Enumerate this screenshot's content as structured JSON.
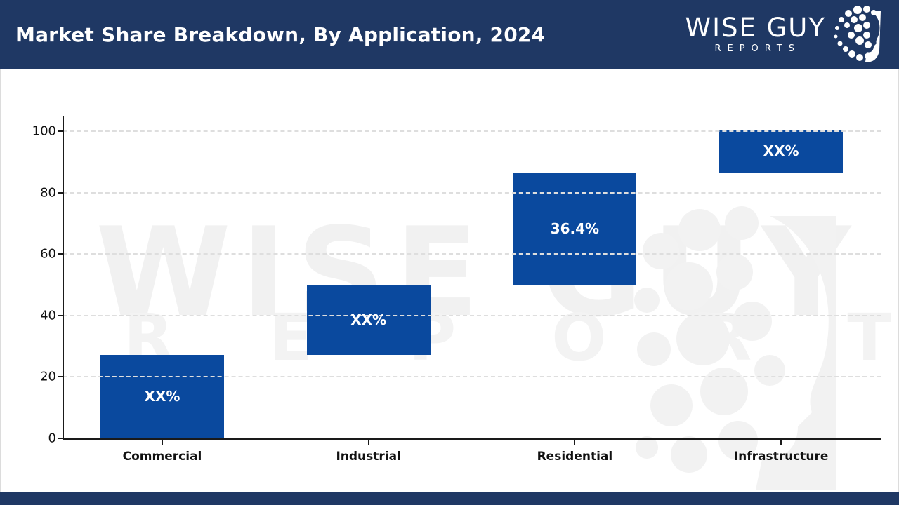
{
  "header": {
    "title": "Market Share Breakdown, By Application, 2024",
    "bg_color": "#1f3864",
    "logo": {
      "wordmark": "WISE GUY",
      "subtitle": "REPORTS"
    }
  },
  "colors": {
    "bar": "#0a499e",
    "header_bg": "#1f3864",
    "footer_bg": "#1f3864",
    "axis": "#1a1a1a",
    "gridline": "#dedede",
    "bar_label": "#ffffff",
    "watermark": "#f1f1f1"
  },
  "watermark": {
    "line1": "WISE GUY",
    "line2": "R E P O R T S"
  },
  "chart_data": {
    "type": "bar",
    "subtype": "floating-waterfall",
    "title": "Market Share Breakdown, By Application, 2024",
    "xlabel": "",
    "ylabel": "",
    "categories": [
      "Commercial",
      "Industrial",
      "Residential",
      "Infrastructure"
    ],
    "segments": [
      {
        "category": "Commercial",
        "start": 0,
        "end": 27.2,
        "label": "XX%"
      },
      {
        "category": "Industrial",
        "start": 27.2,
        "end": 50.0,
        "label": "XX%"
      },
      {
        "category": "Residential",
        "start": 50.0,
        "end": 86.4,
        "label": "36.4%"
      },
      {
        "category": "Infrastructure",
        "start": 86.6,
        "end": 100.4,
        "label": "XX%"
      }
    ],
    "ylim": [
      0,
      100
    ],
    "yticks": [
      0,
      20,
      40,
      60,
      80,
      100
    ],
    "grid": "horizontal-dashed",
    "legend": "none"
  }
}
